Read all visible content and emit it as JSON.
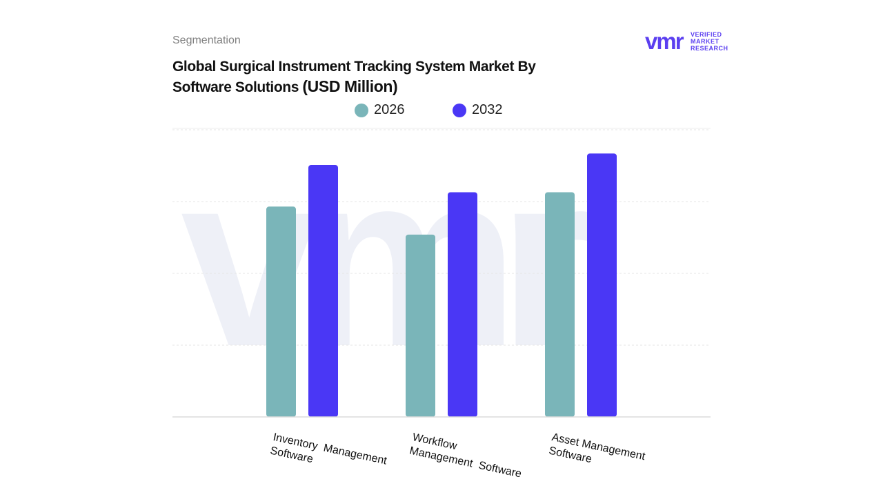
{
  "header": {
    "segment_label": "Segmentation",
    "title_line1": "Global Surgical Instrument Tracking System Market By",
    "title_line2": "Software Solutions",
    "title_unit": "(USD Million)"
  },
  "logo": {
    "mark": "vmr",
    "line1": "VERIFIED",
    "line2": "MARKET",
    "line3": "RESEARCH",
    "color": "#5b3ff0"
  },
  "chart_data": {
    "type": "bar",
    "title": "Global Surgical Instrument Tracking System Market By Software Solutions (USD Million)",
    "categories": [
      "Inventory  Management Software",
      "Workflow Management  Software",
      "Asset Management Software"
    ],
    "category_label_lines": [
      [
        "Inventory  Management",
        "Software"
      ],
      [
        "Workflow",
        "Management  Software"
      ],
      [
        "Asset Management",
        "Software"
      ]
    ],
    "series": [
      {
        "name": "2026",
        "color": "#7ab5b9",
        "values": [
          2.93,
          2.54,
          3.13
        ]
      },
      {
        "name": "2032",
        "color": "#4a37f5",
        "values": [
          3.51,
          3.13,
          3.67
        ]
      }
    ],
    "ylim": [
      0,
      4.5
    ],
    "grid": true,
    "legend": "top-center",
    "xlabel": "",
    "ylabel": ""
  }
}
